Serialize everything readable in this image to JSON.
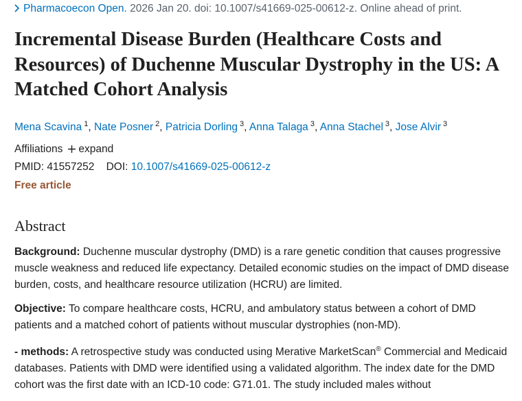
{
  "citation": {
    "journal": "Pharmacoecon Open.",
    "details": "2026 Jan 20. doi: 10.1007/s41669-025-00612-z. Online ahead of print."
  },
  "title": "Incremental Disease Burden (Healthcare Costs and Resources) of Duchenne Muscular Dystrophy in the US: A Matched Cohort Analysis",
  "authors": [
    {
      "name": "Mena Scavina",
      "affiliation": "1"
    },
    {
      "name": "Nate Posner",
      "affiliation": "2"
    },
    {
      "name": "Patricia Dorling",
      "affiliation": "3"
    },
    {
      "name": "Anna Talaga",
      "affiliation": "3"
    },
    {
      "name": "Anna Stachel",
      "affiliation": "3"
    },
    {
      "name": "Jose Alvir",
      "affiliation": "3"
    }
  ],
  "affiliations": {
    "label": "Affiliations",
    "toggle": "expand"
  },
  "identifiers": {
    "pmid_label": "PMID:",
    "pmid": "41557252",
    "doi_label": "DOI:",
    "doi": "10.1007/s41669-025-00612-z"
  },
  "free_article": "Free article",
  "abstract": {
    "heading": "Abstract",
    "sections": [
      {
        "label": "Background:",
        "text": "Duchenne muscular dystrophy (DMD) is a rare genetic condition that causes progressive muscle weakness and reduced life expectancy. Detailed economic studies on the impact of DMD disease burden, costs, and healthcare resource utilization (HCRU) are limited."
      },
      {
        "label": "Objective:",
        "text": "To compare healthcare costs, HCRU, and ambulatory status between a cohort of DMD patients and a matched cohort of patients without muscular dystrophies (non-MD)."
      },
      {
        "label": "- methods:",
        "text": "A retrospective study was conducted using Merative MarketScan",
        "superscript": "®",
        "text_after": " Commercial and Medicaid databases. Patients with DMD were identified using a validated algorithm. The index date for the DMD cohort was the first date with an ICD-10 code: G71.01. The study included males without"
      }
    ]
  }
}
